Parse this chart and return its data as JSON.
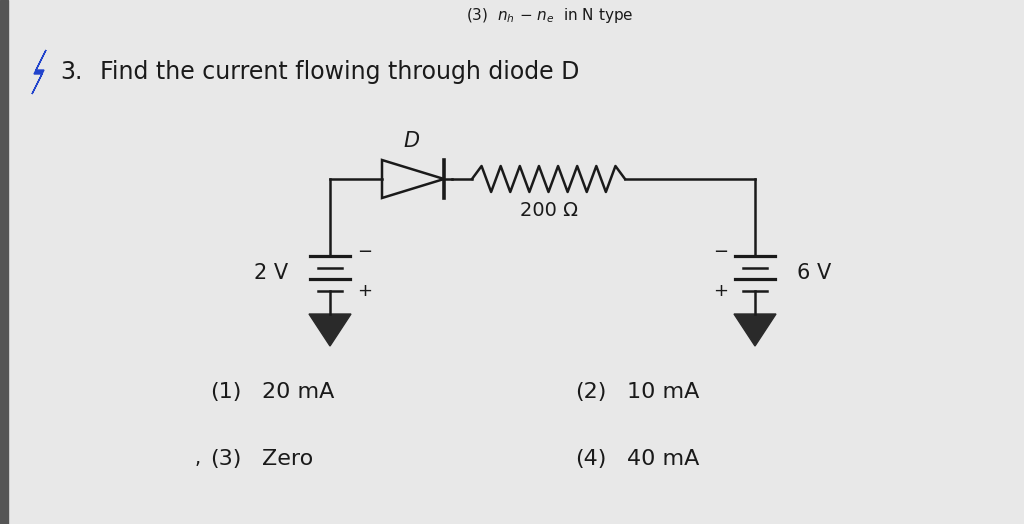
{
  "bg_color": "#e8e8e8",
  "page_color": "#f0eeec",
  "title_text": "Find the current flowing through diode D",
  "question_number": "3.",
  "options": [
    {
      "num": "(1)",
      "text": "20 mA"
    },
    {
      "num": "(2)",
      "text": "10 mA"
    },
    {
      "num": "(3)",
      "text": "Zero"
    },
    {
      "num": "(4)",
      "text": "40 mA"
    }
  ],
  "circuit": {
    "battery_left_label": "2 V",
    "battery_left_polarity_top": "−",
    "battery_left_polarity_bot": "+",
    "diode_label": "D",
    "resistor_label": "200 Ω",
    "battery_right_label": "6 V",
    "battery_right_polarity_top": "−",
    "battery_right_polarity_bot": "+"
  }
}
